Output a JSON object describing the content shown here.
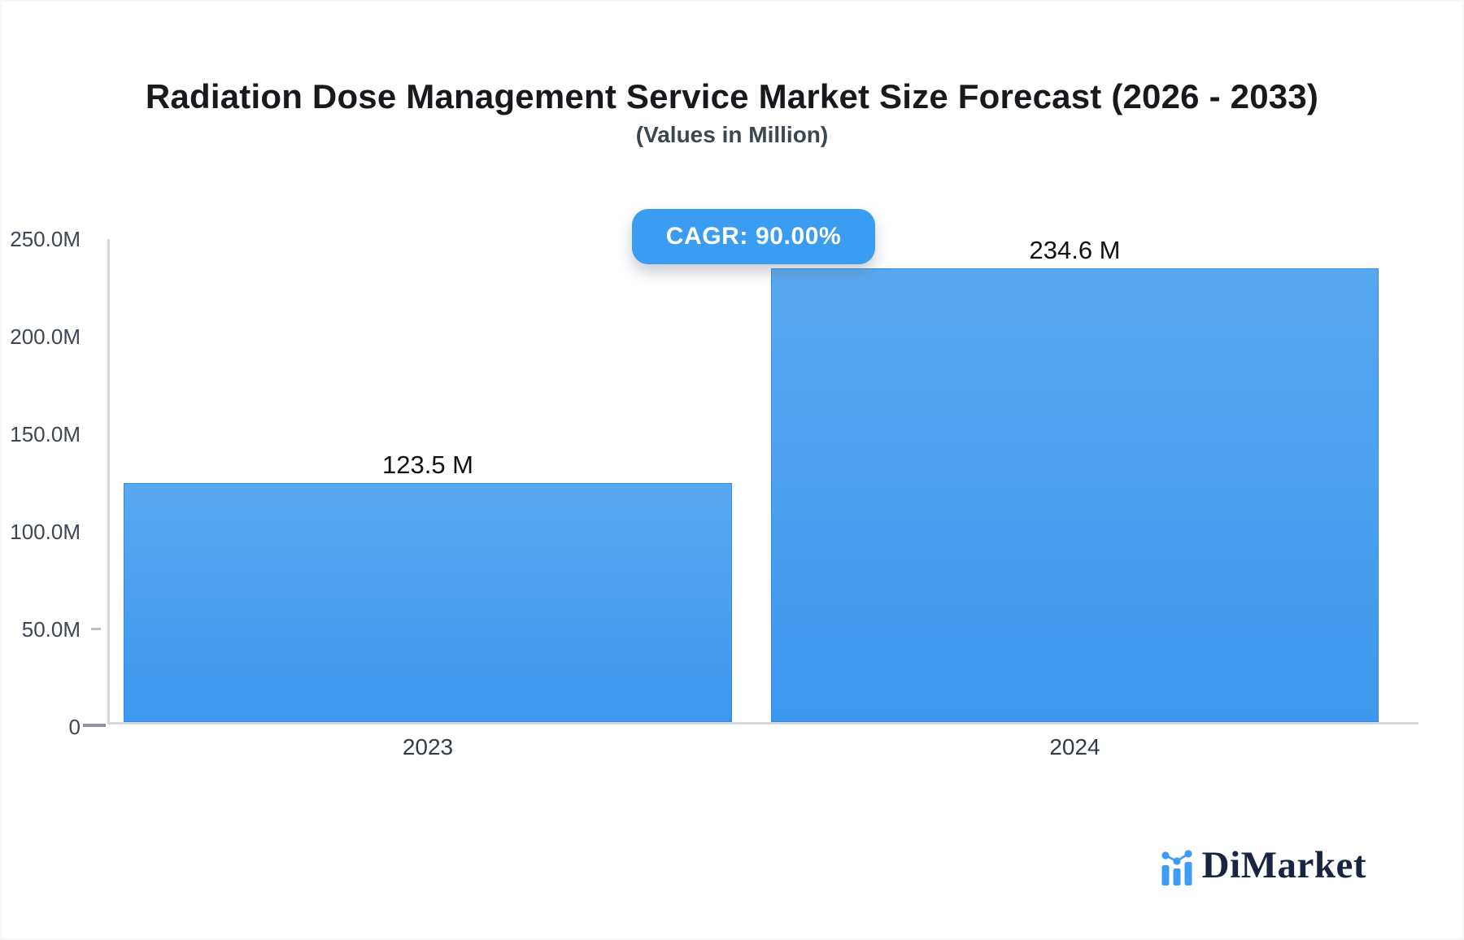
{
  "title": "Radiation Dose Management Service Market Size Forecast (2026 - 2033)",
  "subtitle": "(Values in Million)",
  "cagr_badge": "CAGR: 90.00%",
  "chart_data": {
    "type": "bar",
    "categories": [
      "2023",
      "2024"
    ],
    "values": [
      123.5,
      234.6
    ],
    "value_labels": [
      "123.5 M",
      "234.6 M"
    ],
    "title": "Radiation Dose Management Service Market Size Forecast (2026 - 2033)",
    "subtitle": "(Values in Million)",
    "xlabel": "",
    "ylabel": "",
    "ylim": [
      0,
      250
    ],
    "ytick_labels": [
      "250.0M",
      "200.0M",
      "150.0M",
      "100.0M",
      "50.0M",
      "0"
    ],
    "grid": false,
    "legend": "none",
    "bar_color_top": "#58a8f0",
    "bar_color_bottom": "#3d97ee"
  },
  "branding": {
    "logo_text": "DiMarket",
    "logo_icon": "bar-chart-trend-icon"
  },
  "colors": {
    "accent_blue": "#3b9df1",
    "bar_border": "#2e8ee2",
    "axis_line": "#d6d8dd",
    "text_dark": "#17191c",
    "text_slate": "#3e4653"
  }
}
